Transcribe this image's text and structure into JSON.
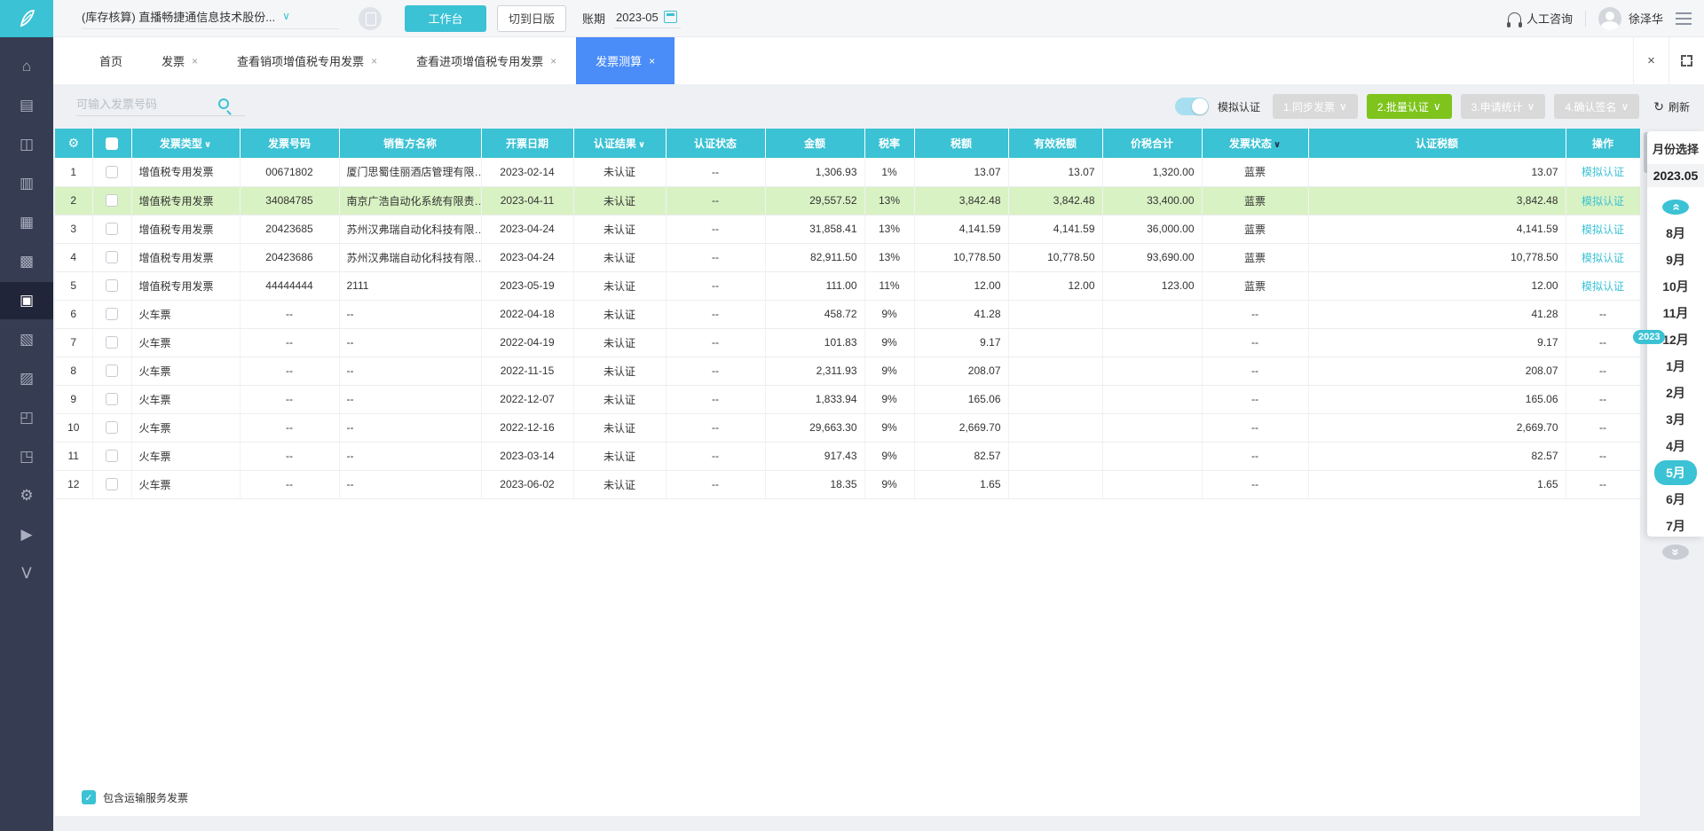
{
  "colors": {
    "accent_teal": "#3bc2d4",
    "active_tab_blue": "#4a8cf8",
    "green_button": "#7ec41c",
    "row_highlight_green": "#d9f2c4",
    "sidebar_bg": "#363c52",
    "link_teal": "#3bc2d4"
  },
  "topbar": {
    "company": "(库存核算) 直播畅捷通信息技术股份...",
    "workbench_btn": "工作台",
    "switch_daily_btn": "切到日版",
    "period_label": "账期",
    "period_value": "2023-05",
    "consult_label": "人工咨询",
    "user_name": "徐泽华"
  },
  "tabs": [
    {
      "label": "首页",
      "closable": false,
      "active": false
    },
    {
      "label": "发票",
      "closable": true,
      "active": false
    },
    {
      "label": "查看销项增值税专用发票",
      "closable": true,
      "active": false
    },
    {
      "label": "查看进项增值税专用发票",
      "closable": true,
      "active": false
    },
    {
      "label": "发票测算",
      "closable": true,
      "active": true
    }
  ],
  "tab_controls": {
    "close_label": "×",
    "fullscreen_icon": "fullscreen"
  },
  "sidebar": {
    "items": [
      {
        "name": "home-icon",
        "glyph": "⌂",
        "active": false
      },
      {
        "name": "voucher-icon",
        "glyph": "▤",
        "active": false
      },
      {
        "name": "report-chart-icon",
        "glyph": "◫",
        "active": false
      },
      {
        "name": "cashier-icon",
        "glyph": "▥",
        "active": false
      },
      {
        "name": "ledger-icon",
        "glyph": "▦",
        "active": false
      },
      {
        "name": "detail-grid-icon",
        "glyph": "▩",
        "active": false
      },
      {
        "name": "invoice-icon",
        "glyph": "▣",
        "active": true
      },
      {
        "name": "assets-icon",
        "glyph": "▧",
        "active": false
      },
      {
        "name": "service-icon",
        "glyph": "▨",
        "active": false
      },
      {
        "name": "checkout-icon",
        "glyph": "◰",
        "active": false
      },
      {
        "name": "salary-icon",
        "glyph": "◳",
        "active": false
      },
      {
        "name": "settings-gear-icon",
        "glyph": "⚙",
        "active": false
      },
      {
        "name": "video-icon",
        "glyph": "▶",
        "active": false
      },
      {
        "name": "logo-v-icon",
        "glyph": "Ⅴ",
        "active": false
      }
    ]
  },
  "toolbar": {
    "search_placeholder": "可输入发票号码",
    "toggle_label": "模拟认证",
    "toggle_on": true,
    "buttons": [
      {
        "label": "1.同步发票",
        "style": "gray",
        "dropdown": "∨"
      },
      {
        "label": "2.批量认证",
        "style": "green",
        "dropdown": "∨"
      },
      {
        "label": "3.申请统计",
        "style": "gray",
        "dropdown": "∨"
      },
      {
        "label": "4.确认签名",
        "style": "gray",
        "dropdown": "∨"
      }
    ],
    "refresh_label": "刷新"
  },
  "table": {
    "columns": [
      "发票类型",
      "发票号码",
      "销售方名称",
      "开票日期",
      "认证结果",
      "认证状态",
      "金额",
      "税率",
      "税额",
      "有效税额",
      "价税合计",
      "发票状态",
      "认证税额",
      "操作"
    ],
    "sortable_columns": [
      "发票类型",
      "认证结果",
      "发票状态"
    ],
    "rows": [
      {
        "idx": "1",
        "type": "增值税专用发票",
        "no": "00671802",
        "seller": "厦门思蜀佳丽酒店管理有限…",
        "date": "2023-02-14",
        "result": "未认证",
        "status": "--",
        "amount": "1,306.93",
        "rate": "1%",
        "tax": "13.07",
        "valid_tax": "13.07",
        "total": "1,320.00",
        "inv_status": "蓝票",
        "auth_tax": "13.07",
        "op": "模拟认证",
        "highlight": false
      },
      {
        "idx": "2",
        "type": "增值税专用发票",
        "no": "34084785",
        "seller": "南京广浩自动化系统有限责…",
        "date": "2023-04-11",
        "result": "未认证",
        "status": "--",
        "amount": "29,557.52",
        "rate": "13%",
        "tax": "3,842.48",
        "valid_tax": "3,842.48",
        "total": "33,400.00",
        "inv_status": "蓝票",
        "auth_tax": "3,842.48",
        "op": "模拟认证",
        "highlight": true
      },
      {
        "idx": "3",
        "type": "增值税专用发票",
        "no": "20423685",
        "seller": "苏州汉弗瑞自动化科技有限…",
        "date": "2023-04-24",
        "result": "未认证",
        "status": "--",
        "amount": "31,858.41",
        "rate": "13%",
        "tax": "4,141.59",
        "valid_tax": "4,141.59",
        "total": "36,000.00",
        "inv_status": "蓝票",
        "auth_tax": "4,141.59",
        "op": "模拟认证",
        "highlight": false
      },
      {
        "idx": "4",
        "type": "增值税专用发票",
        "no": "20423686",
        "seller": "苏州汉弗瑞自动化科技有限…",
        "date": "2023-04-24",
        "result": "未认证",
        "status": "--",
        "amount": "82,911.50",
        "rate": "13%",
        "tax": "10,778.50",
        "valid_tax": "10,778.50",
        "total": "93,690.00",
        "inv_status": "蓝票",
        "auth_tax": "10,778.50",
        "op": "模拟认证",
        "highlight": false
      },
      {
        "idx": "5",
        "type": "增值税专用发票",
        "no": "44444444",
        "seller": "2111",
        "date": "2023-05-19",
        "result": "未认证",
        "status": "--",
        "amount": "111.00",
        "rate": "11%",
        "tax": "12.00",
        "valid_tax": "12.00",
        "total": "123.00",
        "inv_status": "蓝票",
        "auth_tax": "12.00",
        "op": "模拟认证",
        "highlight": false
      },
      {
        "idx": "6",
        "type": "火车票",
        "no": "--",
        "seller": "--",
        "date": "2022-04-18",
        "result": "未认证",
        "status": "--",
        "amount": "458.72",
        "rate": "9%",
        "tax": "41.28",
        "valid_tax": "",
        "total": "",
        "inv_status": "--",
        "auth_tax": "41.28",
        "op": "--",
        "highlight": false
      },
      {
        "idx": "7",
        "type": "火车票",
        "no": "--",
        "seller": "--",
        "date": "2022-04-19",
        "result": "未认证",
        "status": "--",
        "amount": "101.83",
        "rate": "9%",
        "tax": "9.17",
        "valid_tax": "",
        "total": "",
        "inv_status": "--",
        "auth_tax": "9.17",
        "op": "--",
        "highlight": false
      },
      {
        "idx": "8",
        "type": "火车票",
        "no": "--",
        "seller": "--",
        "date": "2022-11-15",
        "result": "未认证",
        "status": "--",
        "amount": "2,311.93",
        "rate": "9%",
        "tax": "208.07",
        "valid_tax": "",
        "total": "",
        "inv_status": "--",
        "auth_tax": "208.07",
        "op": "--",
        "highlight": false
      },
      {
        "idx": "9",
        "type": "火车票",
        "no": "--",
        "seller": "--",
        "date": "2022-12-07",
        "result": "未认证",
        "status": "--",
        "amount": "1,833.94",
        "rate": "9%",
        "tax": "165.06",
        "valid_tax": "",
        "total": "",
        "inv_status": "--",
        "auth_tax": "165.06",
        "op": "--",
        "highlight": false
      },
      {
        "idx": "10",
        "type": "火车票",
        "no": "--",
        "seller": "--",
        "date": "2022-12-16",
        "result": "未认证",
        "status": "--",
        "amount": "29,663.30",
        "rate": "9%",
        "tax": "2,669.70",
        "valid_tax": "",
        "total": "",
        "inv_status": "--",
        "auth_tax": "2,669.70",
        "op": "--",
        "highlight": false
      },
      {
        "idx": "11",
        "type": "火车票",
        "no": "--",
        "seller": "--",
        "date": "2023-03-14",
        "result": "未认证",
        "status": "--",
        "amount": "917.43",
        "rate": "9%",
        "tax": "82.57",
        "valid_tax": "",
        "total": "",
        "inv_status": "--",
        "auth_tax": "82.57",
        "op": "--",
        "highlight": false
      },
      {
        "idx": "12",
        "type": "火车票",
        "no": "--",
        "seller": "--",
        "date": "2023-06-02",
        "result": "未认证",
        "status": "--",
        "amount": "18.35",
        "rate": "9%",
        "tax": "1.65",
        "valid_tax": "",
        "total": "",
        "inv_status": "--",
        "auth_tax": "1.65",
        "op": "--",
        "highlight": false
      }
    ]
  },
  "month_panel": {
    "title": "月份选择",
    "current": "2023.05",
    "year_badge": "2023",
    "months": [
      "8月",
      "9月",
      "10月",
      "11月",
      "12月",
      "1月",
      "2月",
      "3月",
      "4月",
      "5月",
      "6月",
      "7月"
    ],
    "active_month": "5月",
    "collapse_icon": "»"
  },
  "footer": {
    "checkbox_label": "包含运输服务发票",
    "checked": true,
    "check_glyph": "✓"
  }
}
